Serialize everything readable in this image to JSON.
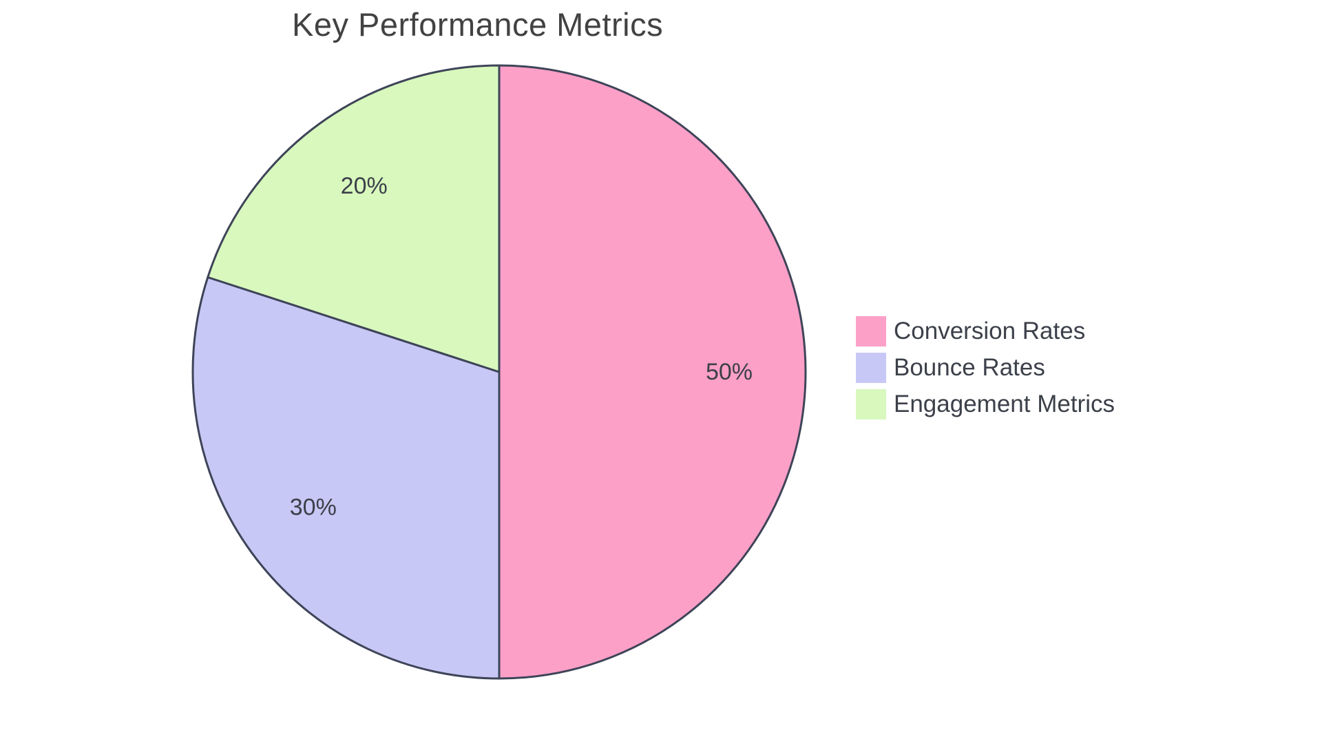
{
  "chart_data": {
    "type": "pie",
    "title": "Key Performance Metrics",
    "slices": [
      {
        "label": "Conversion Rates",
        "value": 50,
        "pct_label": "50%",
        "color": "#FCA0C8"
      },
      {
        "label": "Bounce Rates",
        "value": 30,
        "pct_label": "30%",
        "color": "#C8C8F6"
      },
      {
        "label": "Engagement Metrics",
        "value": 20,
        "pct_label": "20%",
        "color": "#D8F8BE"
      }
    ],
    "start_angle": "top",
    "direction": "clockwise",
    "legend_position": "right",
    "stroke_color": "#3E4458",
    "label_color": "#3C4049",
    "title_color": "#424242",
    "background": "#FFFFFF"
  }
}
